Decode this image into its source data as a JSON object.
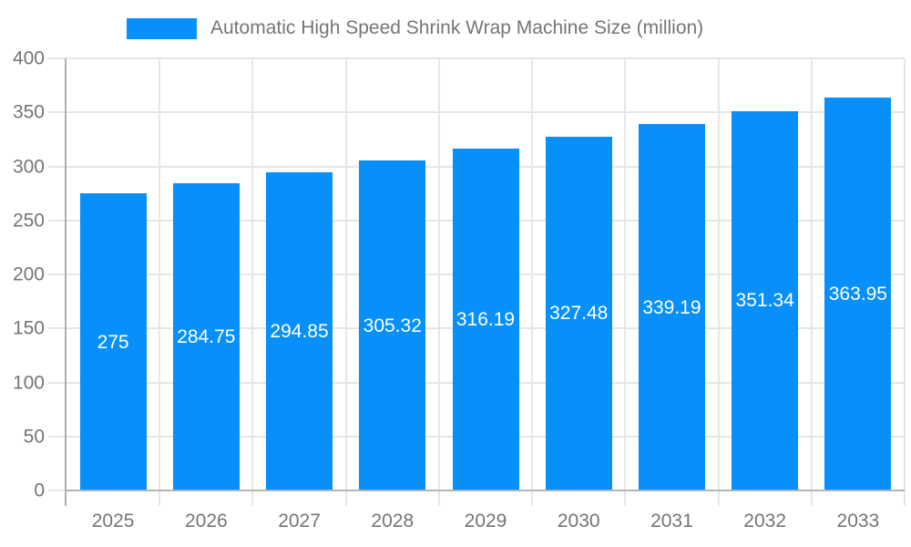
{
  "legend": {
    "swatch_color": "#0890fa"
  },
  "chart_data": {
    "type": "bar",
    "title": "Automatic High Speed Shrink Wrap Machine Size (million)",
    "categories": [
      "2025",
      "2026",
      "2027",
      "2028",
      "2029",
      "2030",
      "2031",
      "2032",
      "2033"
    ],
    "values": [
      275,
      284.75,
      294.85,
      305.32,
      316.19,
      327.48,
      339.19,
      351.34,
      363.95
    ],
    "value_labels": [
      "275",
      "284.75",
      "294.85",
      "305.32",
      "316.19",
      "327.48",
      "339.19",
      "351.34",
      "363.95"
    ],
    "xlabel": "",
    "ylabel": "",
    "ylim": [
      0,
      400
    ],
    "yticks": [
      0,
      50,
      100,
      150,
      200,
      250,
      300,
      350,
      400
    ],
    "grid": true,
    "legend_position": "top",
    "bar_color": "#0890fa",
    "value_label_color": "#ffffff",
    "axis_text_color": "#757575",
    "grid_color": "#e6e6e6",
    "axis_line_color": "#b0b0b0"
  }
}
